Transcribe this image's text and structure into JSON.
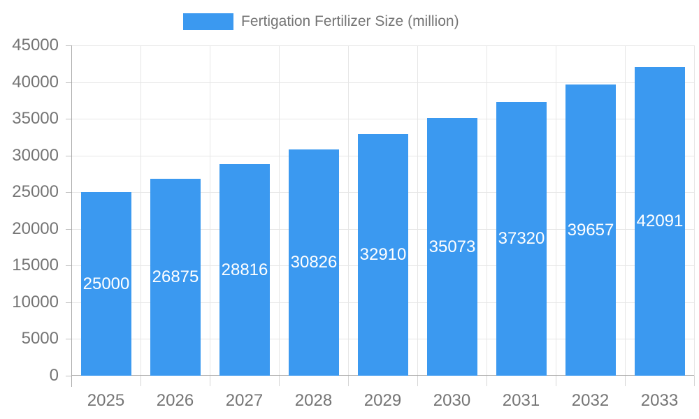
{
  "chart_data": {
    "type": "bar",
    "title": "Fertigation Fertilizer Size (million)",
    "categories": [
      "2025",
      "2026",
      "2027",
      "2028",
      "2029",
      "2030",
      "2031",
      "2032",
      "2033"
    ],
    "values": [
      25000,
      26875,
      28816,
      30826,
      32910,
      35073,
      37320,
      39657,
      42091
    ],
    "xlabel": "",
    "ylabel": "",
    "ylim": [
      0,
      45000
    ],
    "ytick_step": 5000,
    "ytick_labels": [
      "0",
      "5000",
      "10000",
      "15000",
      "20000",
      "25000",
      "30000",
      "35000",
      "40000",
      "45000"
    ],
    "grid": true,
    "legend_position": "top",
    "colors": {
      "bar": "#3B99F0",
      "value_label": "#FFFFFF",
      "axis_text": "#757575",
      "gridline": "#E6E6E6",
      "axis_line": "#ABABAB",
      "tick": "#D6D6D6",
      "y_tick": "#BFBFBF",
      "background": "#FFFFFF"
    }
  }
}
